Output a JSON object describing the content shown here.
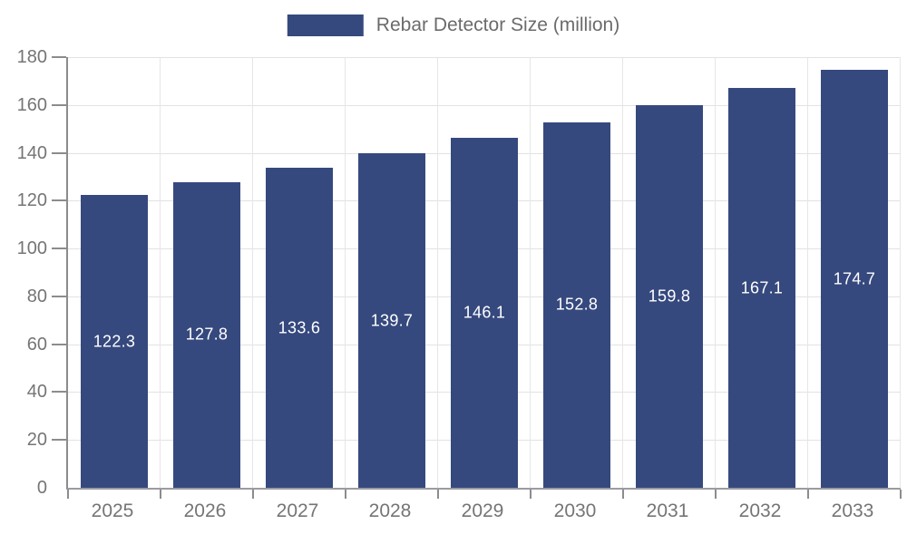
{
  "chart_data": {
    "type": "bar",
    "title": "",
    "legend_label": "Rebar Detector Size (million)",
    "legend_position": "top-center",
    "categories": [
      "2025",
      "2026",
      "2027",
      "2028",
      "2029",
      "2030",
      "2031",
      "2032",
      "2033"
    ],
    "values": [
      122.3,
      127.8,
      133.6,
      139.7,
      146.1,
      152.8,
      159.8,
      167.1,
      174.7
    ],
    "value_decimals": 1,
    "xlabel": "",
    "ylabel": "",
    "ylim": [
      0,
      180
    ],
    "yticks": [
      0,
      20,
      40,
      60,
      80,
      100,
      120,
      140,
      160,
      180
    ],
    "grid": true,
    "colors": {
      "bar": "#36497E",
      "value_label": "#FFFFFF",
      "axis_text": "#757575",
      "legend_text": "#6B6B6B",
      "gridline_h": "#E2E2E2",
      "gridline_v": "#E6E6E6",
      "axis_line": "#8C8C8C"
    }
  }
}
